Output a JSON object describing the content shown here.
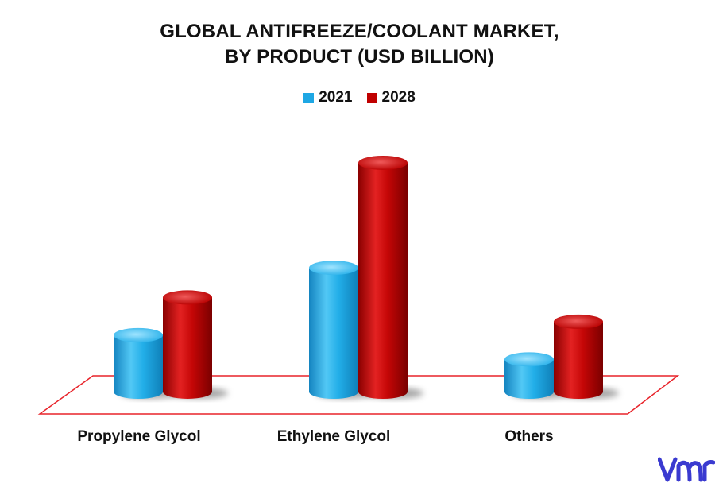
{
  "title_line1": "GLOBAL ANTIFREEZE/COOLANT MARKET,",
  "title_line2": "BY PRODUCT (USD BILLION)",
  "colors": {
    "series_2021": "#1ea7e4",
    "series_2028": "#c00000",
    "floor_outline": "#e8232a",
    "logo": "#3a3ad0"
  },
  "chart_data": {
    "type": "bar",
    "categories": [
      "Propylene Glycol",
      "Ethylene Glycol",
      "Others"
    ],
    "series": [
      {
        "name": "2021",
        "values": [
          2.1,
          4.6,
          1.2
        ]
      },
      {
        "name": "2028",
        "values": [
          3.5,
          8.5,
          2.6
        ]
      }
    ],
    "ylim": [
      0,
      9
    ],
    "legend": "top-center",
    "grid": false
  }
}
